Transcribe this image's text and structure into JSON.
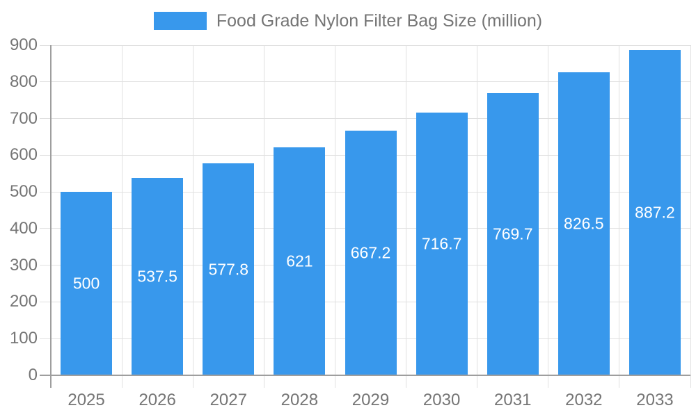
{
  "legend": {
    "label": "Food Grade Nylon Filter Bag Size (million)"
  },
  "colors": {
    "bar": "#3898EC",
    "axis": "#9E9E9E",
    "grid": "#E0E0E0",
    "text": "#757575",
    "value_label": "#FFFFFF",
    "background": "#FFFFFF"
  },
  "chart_data": {
    "type": "bar",
    "title": "Food Grade Nylon Filter Bag Size (million)",
    "categories": [
      "2025",
      "2026",
      "2027",
      "2028",
      "2029",
      "2030",
      "2031",
      "2032",
      "2033"
    ],
    "values": [
      500,
      537.5,
      577.8,
      621,
      667.2,
      716.7,
      769.7,
      826.5,
      887.2
    ],
    "value_labels": [
      "500",
      "537.5",
      "577.8",
      "621",
      "667.2",
      "716.7",
      "769.7",
      "826.5",
      "887.2"
    ],
    "xlabel": "",
    "ylabel": "",
    "ylim": [
      0,
      900
    ],
    "ytick_step": 100,
    "grid": true,
    "legend_position": "top",
    "value_label_position": "center-of-bar"
  }
}
